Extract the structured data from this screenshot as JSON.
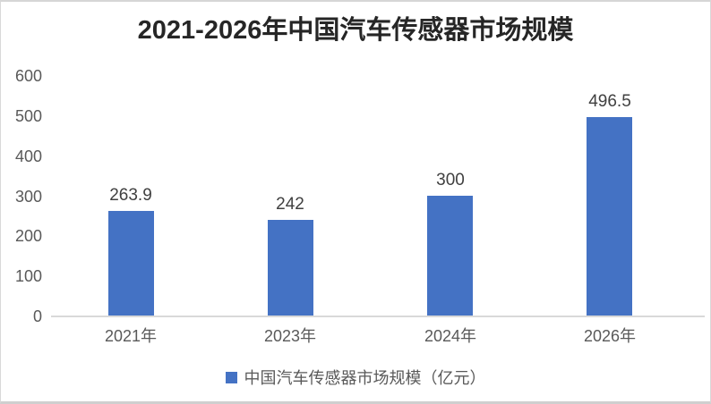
{
  "chart_data": {
    "type": "bar",
    "title": "2021-2026年中国汽车传感器市场规模",
    "categories": [
      "2021年",
      "2023年",
      "2024年",
      "2026年"
    ],
    "values": [
      263.9,
      242,
      300,
      496.5
    ],
    "value_labels": [
      "263.9",
      "242",
      "300",
      "496.5"
    ],
    "legend_label": "中国汽车传感器市场规模（亿元）",
    "legend_position": "bottom",
    "xlabel": "",
    "ylabel": "",
    "ylim": [
      0,
      600
    ],
    "yticks": [
      0,
      100,
      200,
      300,
      400,
      500,
      600
    ],
    "grid": false,
    "bar_color": "#4472C4"
  },
  "colors": {
    "bar": "#4472C4",
    "title_text": "#262626",
    "axis_label": "#595959",
    "data_label": "#404040",
    "axis_line": "#D9D9D9",
    "background": "#FFFFFF",
    "border": "#D9D9D9"
  }
}
